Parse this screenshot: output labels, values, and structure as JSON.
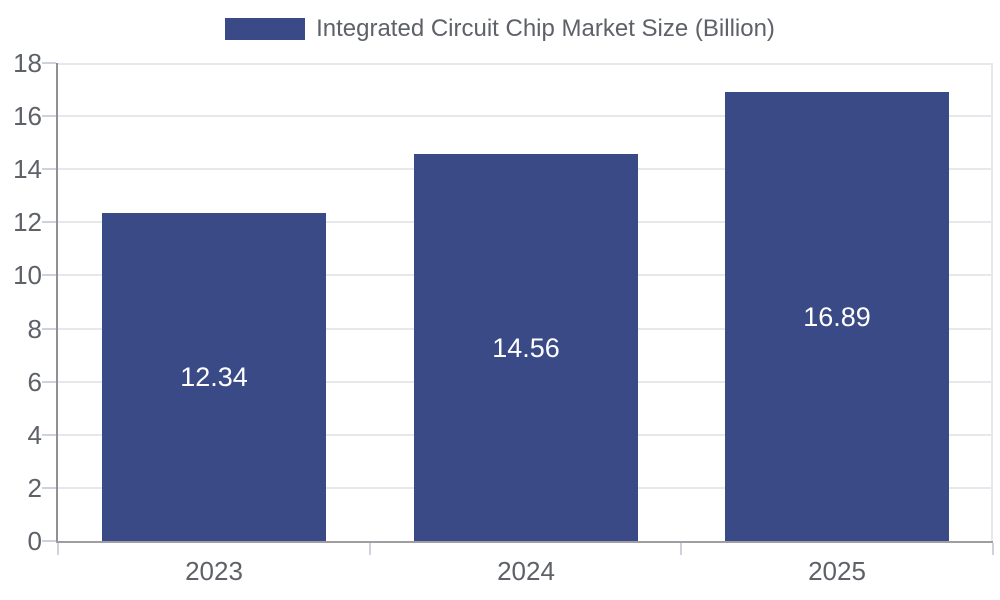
{
  "legend": {
    "label": "Integrated Circuit Chip Market Size (Billion)"
  },
  "chart_data": {
    "type": "bar",
    "title": "Integrated Circuit Chip Market Size (Billion)",
    "series_name": "Integrated Circuit Chip Market Size (Billion)",
    "categories": [
      "2023",
      "2024",
      "2025"
    ],
    "values": [
      12.34,
      14.56,
      16.89
    ],
    "xlabel": "",
    "ylabel": "",
    "ylim": [
      0,
      18
    ],
    "ytick_step": 2,
    "y_tick_labels": [
      "0",
      "2",
      "4",
      "6",
      "8",
      "10",
      "12",
      "14",
      "16",
      "18"
    ],
    "grid": true,
    "legend_position": "top-center",
    "value_labels_inside_bars": true,
    "colors": {
      "bar": "#3A4A87",
      "value_label": "#FFFFFF",
      "axis_text": "#5E6168",
      "grid_line": "#E6E8EC",
      "x_axis_line": "#9E9EA3",
      "y_axis_line": "#8F8F94",
      "tick": "#CDD2DC",
      "background": "#FFFFFF"
    }
  }
}
